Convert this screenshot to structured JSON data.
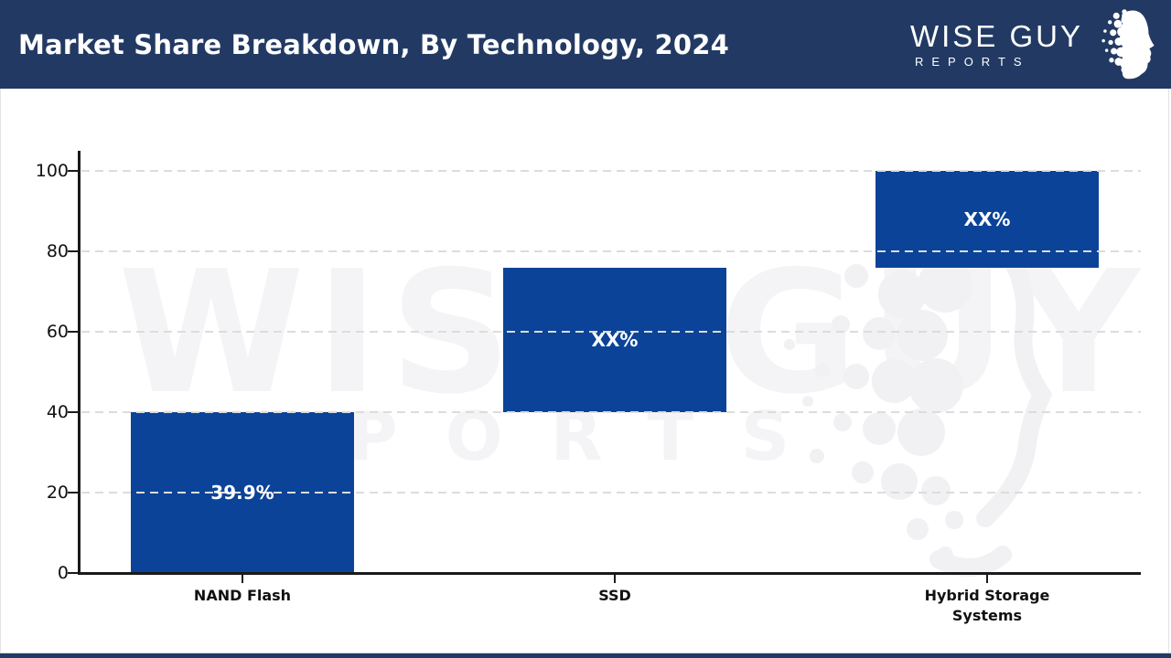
{
  "header": {
    "title": "Market Share Breakdown, By Technology, 2024",
    "logo": {
      "line1": "WISE GUY",
      "line2": "REPORTS"
    }
  },
  "watermark": {
    "line1": "WISE GUY",
    "line2": "REPORTS"
  },
  "chart_data": {
    "type": "bar",
    "subtype": "waterfall",
    "title": "Market Share Breakdown, By Technology, 2024",
    "categories": [
      "NAND Flash",
      "SSD",
      "Hybrid Storage Systems"
    ],
    "segments": [
      {
        "category": "NAND Flash",
        "start": 0,
        "end": 39.9,
        "label": "39.9%"
      },
      {
        "category": "SSD",
        "start": 40,
        "end": 75.8,
        "label": "XX%"
      },
      {
        "category": "Hybrid Storage Systems",
        "start": 75.8,
        "end": 100,
        "label": "XX%"
      }
    ],
    "yticks": [
      0,
      20,
      40,
      60,
      80,
      100
    ],
    "ylim": [
      0,
      105
    ],
    "xlabel": "",
    "ylabel": "",
    "grid": "horizontal-dashed",
    "legend": "none",
    "bar_color": "#0b4399",
    "bar_label_color": "#ffffff",
    "axis_color": "#1a1a1a",
    "gridline_color": "#dcdcdc",
    "header_color": "#223a63",
    "watermark_color": "#f4f4f6"
  }
}
